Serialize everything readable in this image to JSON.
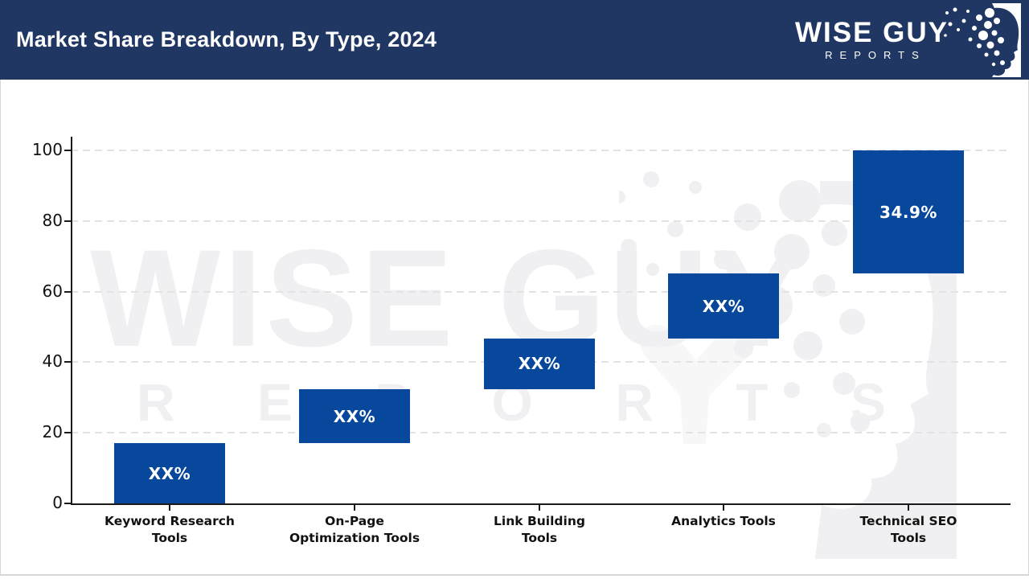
{
  "header": {
    "title": "Market Share Breakdown, By Type, 2024",
    "logo": {
      "line1": "WISE GUY",
      "line2": "REPORTS"
    }
  },
  "watermark": {
    "line1": "WISE GUY",
    "line2": "REPORTS"
  },
  "chart_data": {
    "type": "bar",
    "subtype": "floating-waterfall",
    "title": "Market Share Breakdown, By Type, 2024",
    "categories": [
      "Keyword Research\nTools",
      "On-Page\nOptimization Tools",
      "Link Building\nTools",
      "Analytics Tools",
      "Technical SEO\nTools"
    ],
    "segments": [
      {
        "start": 0,
        "end": 17.0,
        "label": "XX%"
      },
      {
        "start": 17.0,
        "end": 32.4,
        "label": "XX%"
      },
      {
        "start": 32.4,
        "end": 46.7,
        "label": "XX%"
      },
      {
        "start": 46.7,
        "end": 65.1,
        "label": "XX%"
      },
      {
        "start": 65.1,
        "end": 100,
        "label": "34.9%"
      }
    ],
    "ylim": [
      0,
      100
    ],
    "yticks": [
      0,
      20,
      40,
      60,
      80,
      100
    ],
    "xlabel": "",
    "ylabel": "",
    "grid": "dashed-horizontal",
    "legend": "none"
  },
  "colors": {
    "header_bg": "#203764",
    "bar": "#07479c",
    "grid": "#e3e3e4",
    "axis": "#1a1a1a",
    "watermark": "#f0f0f2",
    "panel_border": "#d6d6d6",
    "bar_label": "#ffffff",
    "title_text": "#ffffff"
  }
}
